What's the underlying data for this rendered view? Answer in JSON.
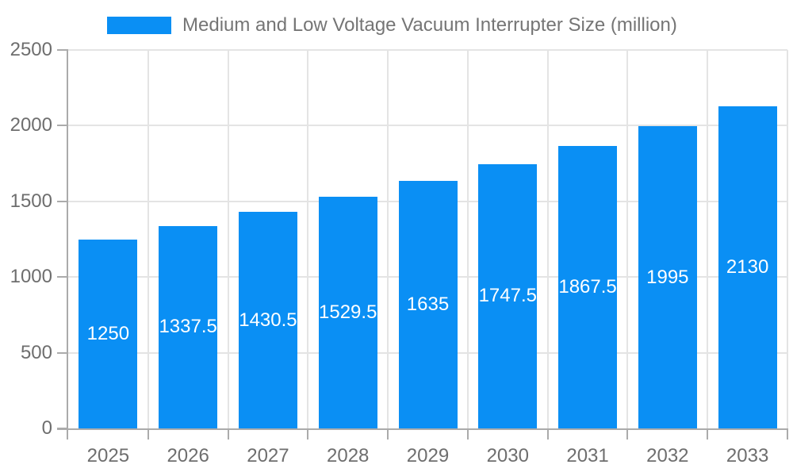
{
  "legend": {
    "label": "Medium and Low Voltage Vacuum Interrupter Size (million)"
  },
  "chart_data": {
    "type": "bar",
    "title": "Medium and Low Voltage Vacuum Interrupter Size (million)",
    "categories": [
      "2025",
      "2026",
      "2027",
      "2028",
      "2029",
      "2030",
      "2031",
      "2032",
      "2033"
    ],
    "values": [
      1250,
      1337.5,
      1430.5,
      1529.5,
      1635,
      1747.5,
      1867.5,
      1995,
      2130
    ],
    "xlabel": "",
    "ylabel": "",
    "ylim": [
      0,
      2500
    ],
    "yticks": [
      0,
      500,
      1000,
      1500,
      2000,
      2500
    ],
    "grid": true,
    "legend_position": "top",
    "bar_label_position": "inside-center",
    "colors": {
      "bar": "#0A8FF4",
      "bar_label": "#FFFFFF",
      "axis_text": "#6E6E6E",
      "legend_text": "#757575",
      "gridline": "#E4E4E4",
      "axis_line": "#ABABAB",
      "background": "#FFFFFF"
    }
  }
}
